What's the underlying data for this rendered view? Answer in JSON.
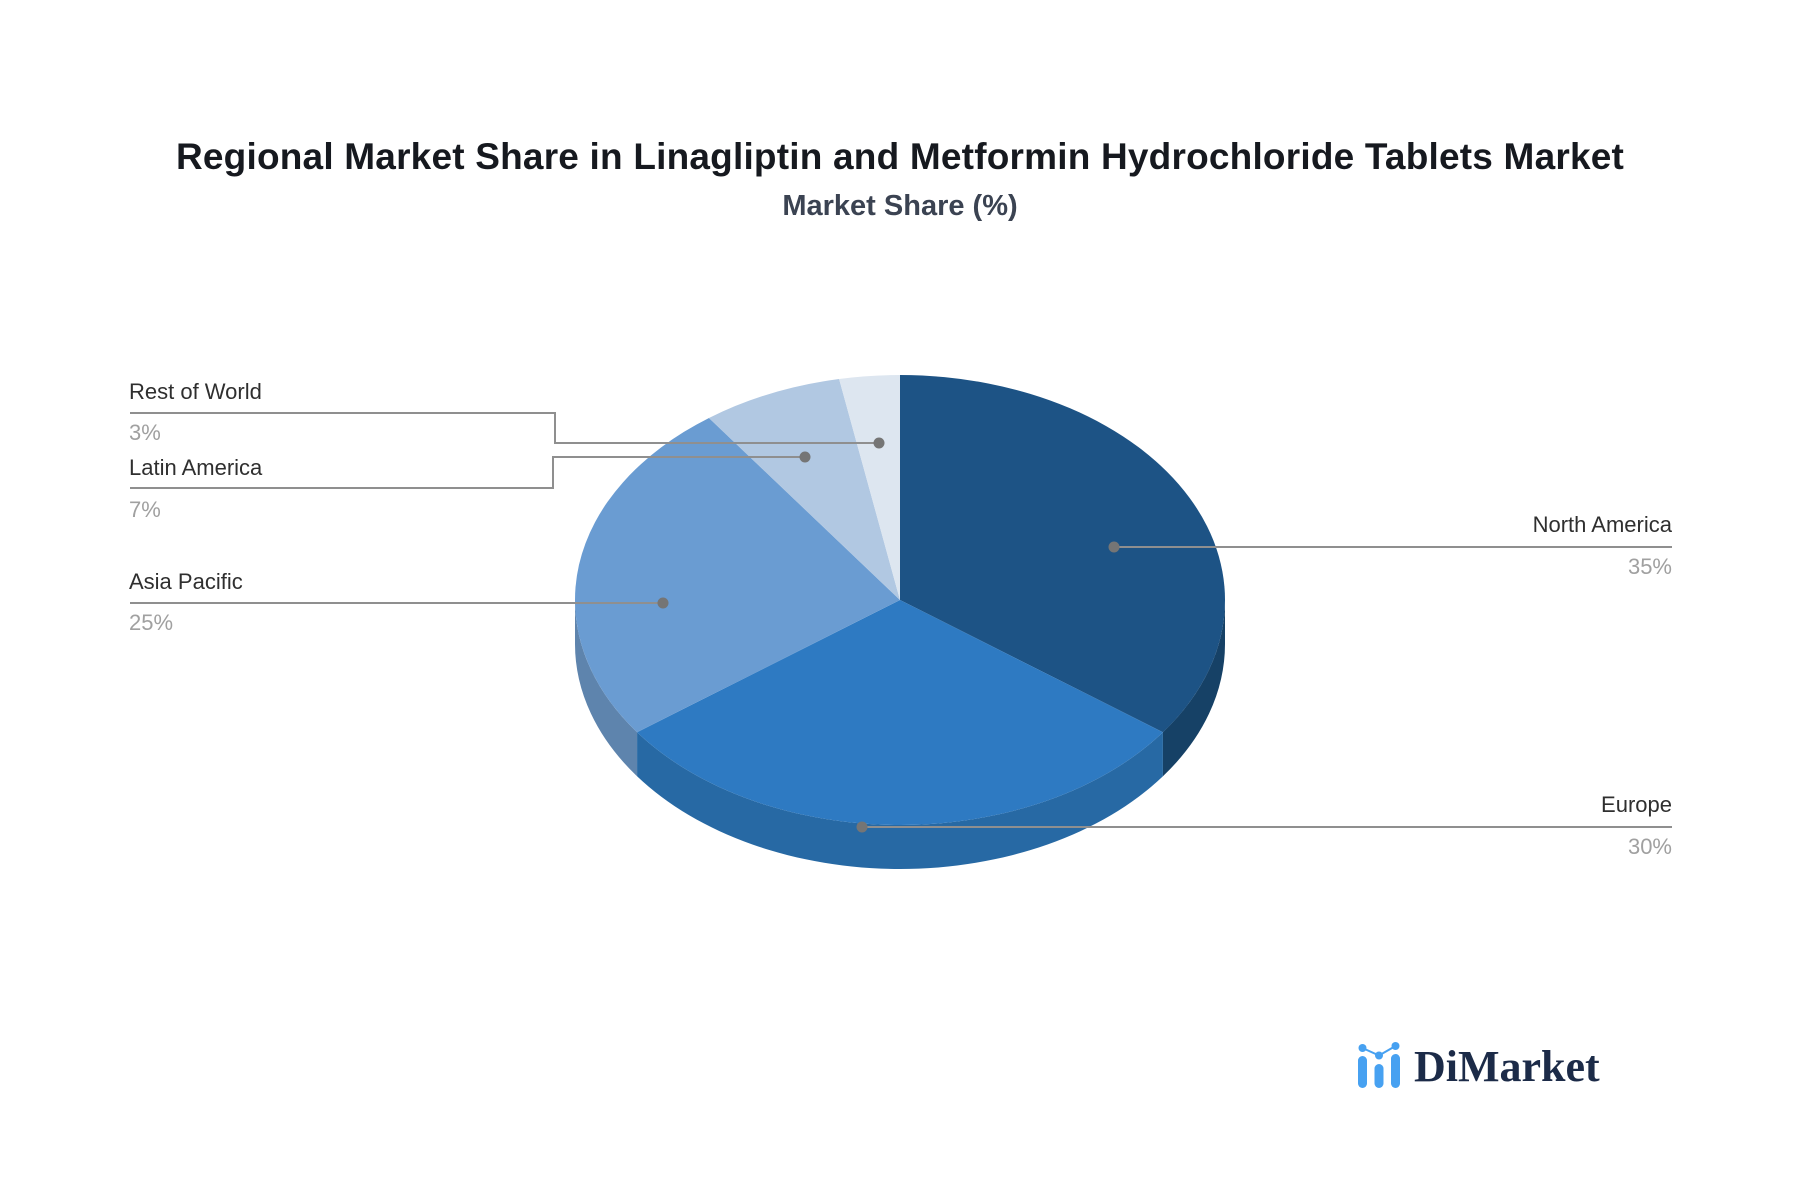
{
  "title": "Regional Market Share in Linagliptin and Metformin Hydrochloride Tablets Market",
  "subtitle": "Market Share (%)",
  "chart_data": {
    "type": "pie",
    "title": "Regional Market Share in Linagliptin and Metformin Hydrochloride Tablets Market",
    "subtitle": "Market Share (%)",
    "unit": "%",
    "style": "pseudo-3d",
    "start_angle_deg": 0,
    "direction": "clockwise",
    "legend_position": "callout-leader-lines",
    "slices": [
      {
        "label": "North America",
        "value": 35,
        "display": "35%",
        "color": "#1d5385",
        "side_color": "#164166"
      },
      {
        "label": "Europe",
        "value": 30,
        "display": "30%",
        "color": "#2e7ac2",
        "side_color": "#2769a4"
      },
      {
        "label": "Asia Pacific",
        "value": 25,
        "display": "25%",
        "color": "#6a9cd2",
        "side_color": "#5e84ad"
      },
      {
        "label": "Latin America",
        "value": 7,
        "display": "7%",
        "color": "#b1c8e2",
        "side_color": "#93aecb"
      },
      {
        "label": "Rest of World",
        "value": 3,
        "display": "3%",
        "color": "#dde6f0",
        "side_color": "#bac7d8"
      }
    ]
  },
  "colors": {
    "title_text": "#16191f",
    "subtitle_text": "#3b4352",
    "callout_name_text": "#2f2f2f",
    "callout_value_text": "#a0a0a0",
    "leader_line": "#8f8f8f",
    "leader_dot": "#757575",
    "logo_icon": "#47a1f1",
    "logo_text": "#1c2b48"
  },
  "logo": {
    "text": "DiMarket",
    "icon": "bar-chart-with-trend-dots"
  }
}
